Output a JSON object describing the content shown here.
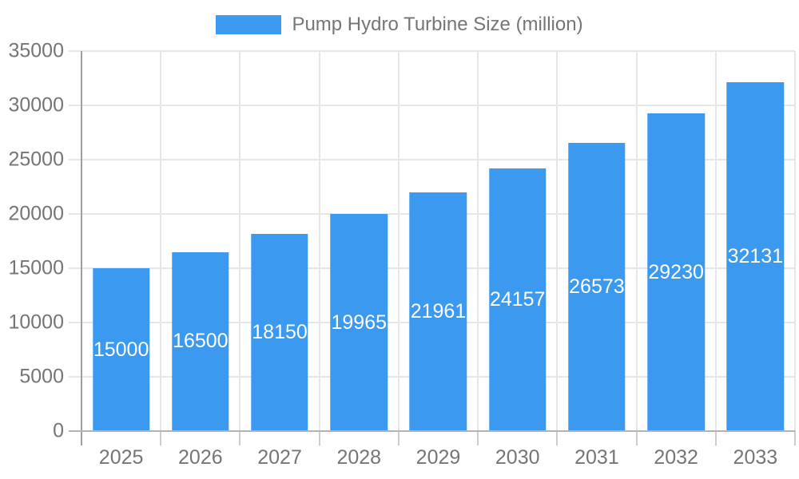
{
  "chart_data": {
    "type": "bar",
    "title": "Pump Hydro Turbine Size (million)",
    "categories": [
      "2025",
      "2026",
      "2027",
      "2028",
      "2029",
      "2030",
      "2031",
      "2032",
      "2033"
    ],
    "values": [
      15000,
      16500,
      18150,
      19965,
      21961,
      24157,
      26573,
      29230,
      32131
    ],
    "xlabel": "",
    "ylabel": "",
    "ylim": [
      0,
      35000
    ],
    "y_ticks": [
      0,
      5000,
      10000,
      15000,
      20000,
      25000,
      30000,
      35000
    ],
    "grid": true,
    "legend_position": "top-center",
    "value_labels_position": "inside-center",
    "colors": {
      "bar": "#3b99f0",
      "bar_label_text": "#ffffff",
      "axis_text": "#757575",
      "gridline": "#e6e6e6",
      "y_axis_line": "#9e9e9e",
      "x_axis_line": "#b3b3b3",
      "background": "#ffffff"
    }
  }
}
